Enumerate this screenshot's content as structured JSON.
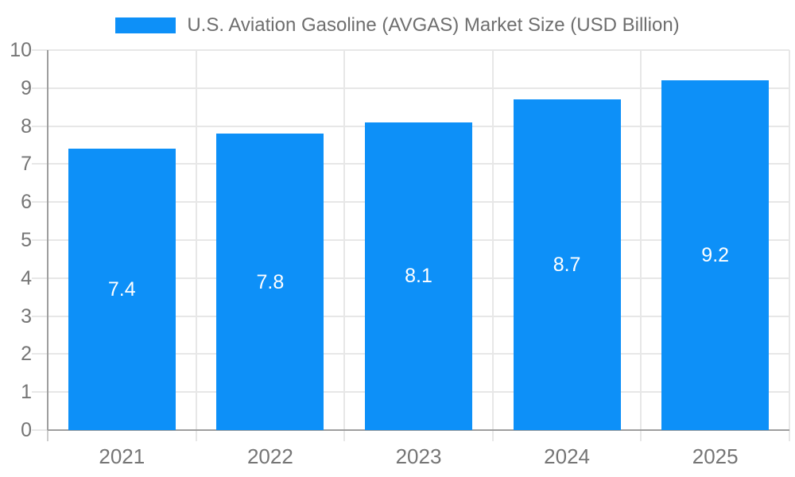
{
  "chart_data": {
    "type": "bar",
    "title": "U.S. Aviation Gasoline (AVGAS) Market Size (USD Billion)",
    "categories": [
      "2021",
      "2022",
      "2023",
      "2024",
      "2025"
    ],
    "series": [
      {
        "name": "U.S. Aviation Gasoline (AVGAS) Market Size (USD Billion)",
        "values": [
          7.4,
          7.8,
          8.1,
          8.7,
          9.2
        ]
      }
    ],
    "bar_labels": [
      "7.4",
      "7.8",
      "8.1",
      "8.7",
      "9.2"
    ],
    "xlabel": "",
    "ylabel": "",
    "ylim": [
      0,
      10
    ],
    "yticks": [
      0,
      1,
      2,
      3,
      4,
      5,
      6,
      7,
      8,
      9,
      10
    ],
    "grid": "on",
    "legend_position": "top",
    "colors": {
      "bar": "#0d90f8",
      "grid": "#e7e7e7",
      "tick": "#cccccc",
      "axis": "#9e9e9e",
      "tick_label": "#757575",
      "title": "#6e6e6e",
      "bar_label": "#ffffff",
      "background": "#ffffff"
    }
  }
}
